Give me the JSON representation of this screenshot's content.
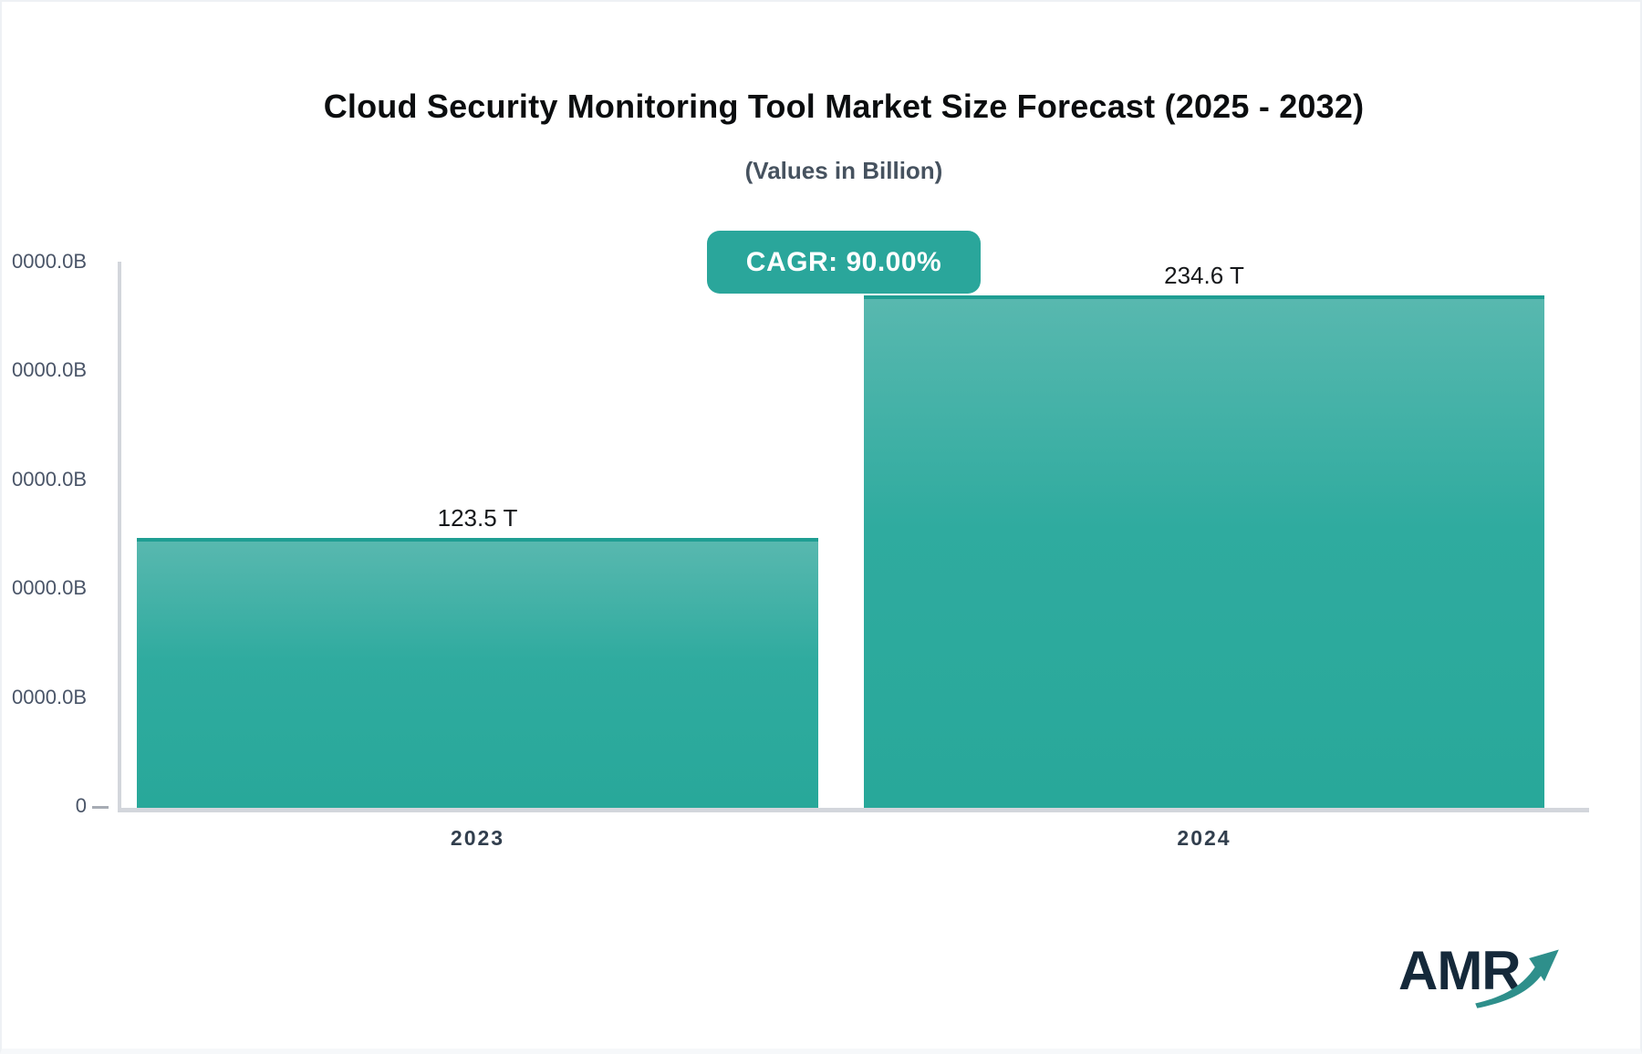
{
  "chart_data": {
    "type": "bar",
    "title": "Cloud Security Monitoring Tool Market Size Forecast (2025 - 2032)",
    "subtitle": "(Values in Billion)",
    "categories": [
      "2023",
      "2024"
    ],
    "values": [
      123.5,
      234.6
    ],
    "value_unit": "T",
    "bar_labels": [
      "123.5 T",
      "234.6 T"
    ],
    "cagr_annotation": "CAGR: 90.00%",
    "y_axis": {
      "visible_tick_labels": [
        "0000.0B",
        "0000.0B",
        "0000.0B",
        "0000.0B",
        "0000.0B",
        "0"
      ],
      "tick_labels_truncated": true,
      "ylim": [
        0,
        250000
      ],
      "unit": "B"
    },
    "grid": false,
    "legend": false
  },
  "logo": {
    "text": "AMR",
    "arrow_icon": "growth-arrow-icon"
  },
  "colors": {
    "accent_teal": "#2AA69B",
    "bar_gradient_top": "#58B8AF",
    "bar_gradient_bottom": "#28A89A",
    "bar_top_border": "#1F9E93",
    "axis_gray": "#D3D6DC",
    "tick_text": "#4A5568",
    "title_text": "#0B0D0F",
    "subtitle_text": "#46525F",
    "category_text": "#313E4D",
    "value_label_text": "#15171A",
    "badge_text": "#FFFFFF",
    "logo_navy": "#15293A",
    "logo_teal": "#2E8F8B",
    "background": "#FFFFFF"
  }
}
